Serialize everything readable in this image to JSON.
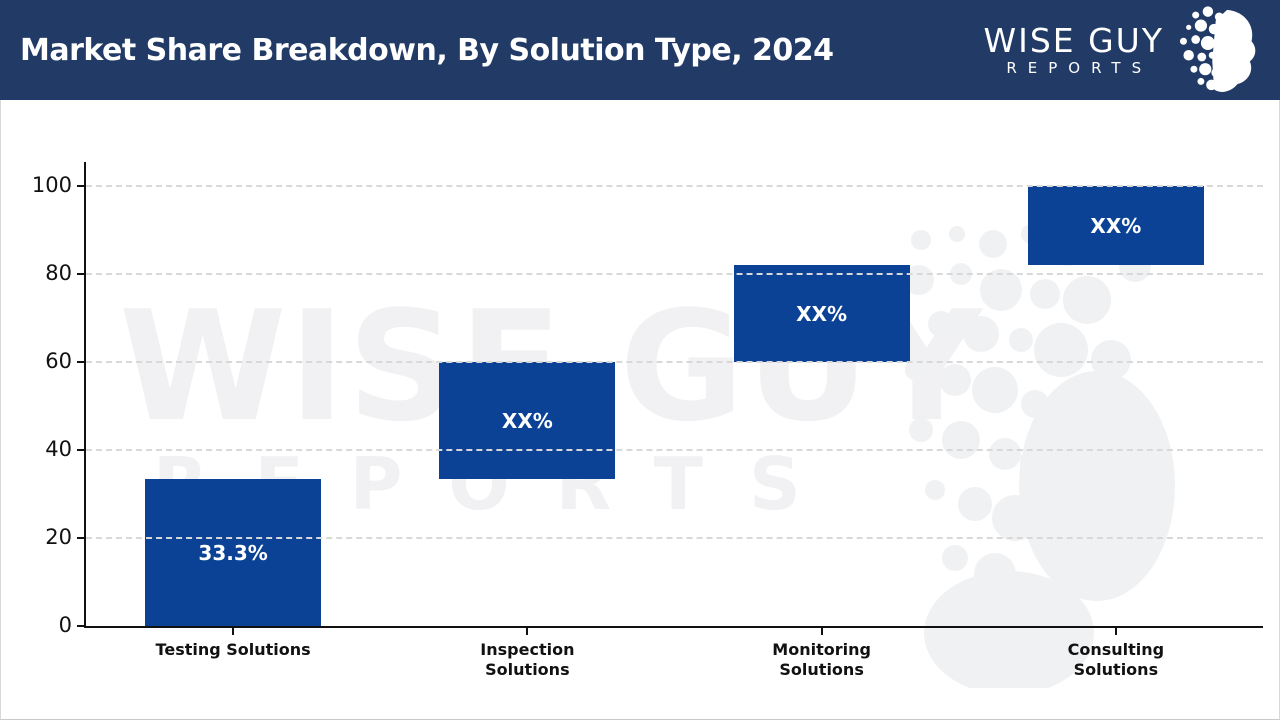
{
  "header": {
    "title": "Market Share Breakdown, By Solution Type, 2024",
    "bg_color": "#213a66",
    "logo": {
      "line1": "WISE GUY",
      "line2": "REPORTS"
    }
  },
  "watermark": {
    "line1": "WISE GUY",
    "line2": "REPORTS"
  },
  "chart_data": {
    "type": "bar",
    "subtype": "waterfall",
    "title": "Market Share Breakdown, By Solution Type, 2024",
    "categories": [
      "Testing Solutions",
      "Inspection\nSolutions",
      "Monitoring\nSolutions",
      "Consulting\nSolutions"
    ],
    "bars": [
      {
        "category": "Testing Solutions",
        "start": 0,
        "end": 33.3,
        "label": "33.3%"
      },
      {
        "category": "Inspection Solutions",
        "start": 33.3,
        "end": 60,
        "label": "XX%"
      },
      {
        "category": "Monitoring Solutions",
        "start": 60,
        "end": 82,
        "label": "XX%"
      },
      {
        "category": "Consulting Solutions",
        "start": 82,
        "end": 100,
        "label": "XX%"
      }
    ],
    "xlabel": "",
    "ylabel": "",
    "ylim": [
      0,
      105
    ],
    "yticks": [
      0,
      20,
      40,
      60,
      80,
      100
    ],
    "grid": "horizontal-dashed",
    "legend": "none",
    "bar_color": "#0b4296",
    "bar_label_color": "#ffffff"
  }
}
